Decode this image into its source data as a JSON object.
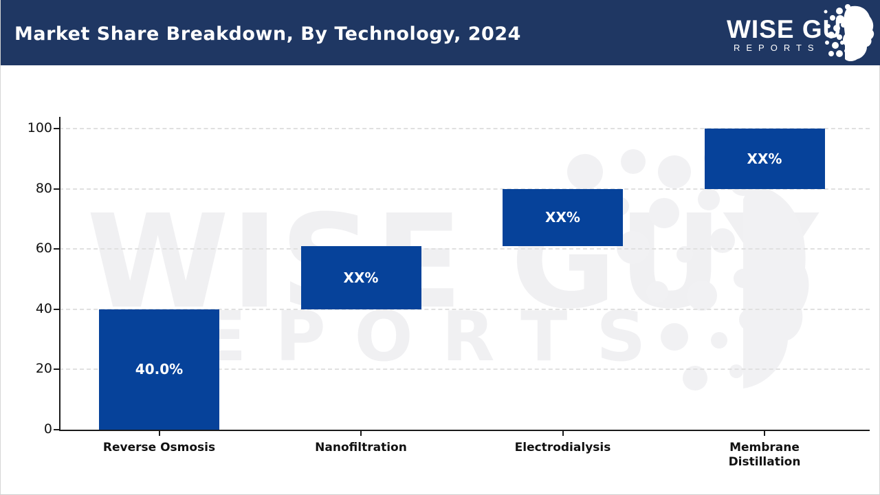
{
  "header": {
    "title": "Market Share Breakdown, By Technology, 2024",
    "bg_color": "#1f3763",
    "logo": {
      "line1": "WISE GUY",
      "line2": "REPORTS"
    }
  },
  "watermark": {
    "line1": "WISE GUY",
    "line2": "REPORTS"
  },
  "chart_data": {
    "type": "bar",
    "subtype": "waterfall",
    "title": "Market Share Breakdown, By Technology, 2024",
    "categories": [
      "Reverse Osmosis",
      "Nanofiltration",
      "Electrodialysis",
      "Membrane Distillation"
    ],
    "segments": [
      {
        "category": "Reverse Osmosis",
        "start": 0,
        "end": 40,
        "label": "40.0%"
      },
      {
        "category": "Nanofiltration",
        "start": 40,
        "end": 61,
        "label": "XX%"
      },
      {
        "category": "Electrodialysis",
        "start": 61,
        "end": 80,
        "label": "XX%"
      },
      {
        "category": "Membrane Distillation",
        "start": 80,
        "end": 100,
        "label": "XX%"
      }
    ],
    "xlabel": "",
    "ylabel": "",
    "ylim": [
      0,
      100
    ],
    "yticks": [
      0,
      20,
      40,
      60,
      80,
      100
    ],
    "grid": "horizontal-dashed",
    "legend": "none",
    "bar_color": "#06429a",
    "bar_label_color": "#ffffff",
    "axis_color": "#1a1a1a",
    "gridline_color": "#e0e0e0"
  }
}
